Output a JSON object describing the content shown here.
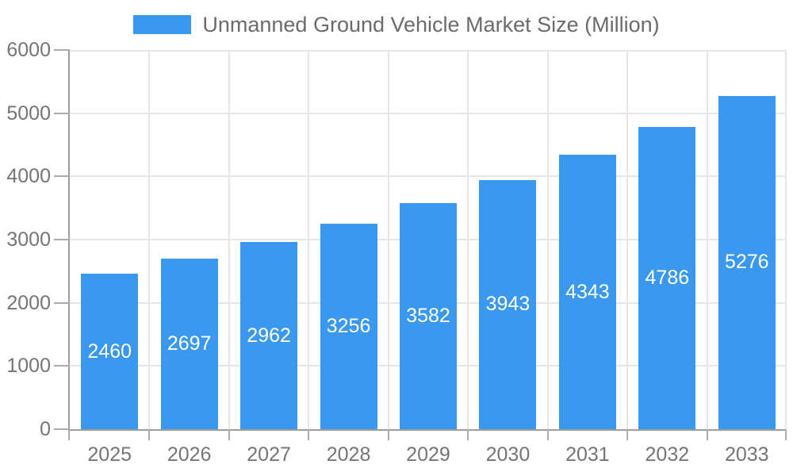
{
  "legend": {
    "label": "Unmanned Ground Vehicle Market Size (Million)"
  },
  "chart_data": {
    "type": "bar",
    "title": "Unmanned Ground Vehicle Market Size (Million)",
    "categories": [
      "2025",
      "2026",
      "2027",
      "2028",
      "2029",
      "2030",
      "2031",
      "2032",
      "2033"
    ],
    "series": [
      {
        "name": "Unmanned Ground Vehicle Market Size (Million)",
        "values": [
          2460,
          2697,
          2962,
          3256,
          3582,
          3943,
          4343,
          4786,
          5276
        ]
      }
    ],
    "value_labels": [
      "2460",
      "2697",
      "2962",
      "3256",
      "3582",
      "3943",
      "4343",
      "4786",
      "5276"
    ],
    "xlabel": "",
    "ylabel": "",
    "ylim": [
      0,
      6000
    ],
    "yticks": [
      0,
      1000,
      2000,
      3000,
      4000,
      5000,
      6000
    ],
    "ytick_labels": [
      "0",
      "1000",
      "2000",
      "3000",
      "4000",
      "5000",
      "6000"
    ],
    "grid": true,
    "legend_position": "top",
    "colors": {
      "bar": "#3A99EE",
      "value_label": "#FFFFFF",
      "grid": "#E6E6E6",
      "axis": "#9E9E9E",
      "tick": "#ABABAB",
      "tick_label": "#757575",
      "title": "#6B6B6B",
      "background": "#FFFFFF"
    }
  }
}
